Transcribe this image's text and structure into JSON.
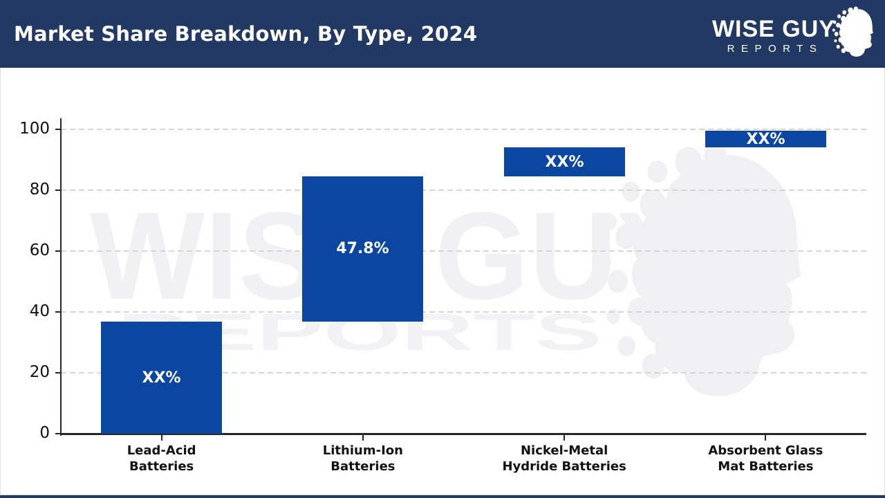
{
  "header": {
    "title": "Market Share Breakdown, By Type, 2024",
    "bg_color": "#223963",
    "logo": {
      "line1": "WISE GUY",
      "line2": "REPORTS"
    }
  },
  "watermark": {
    "line1": "WISE GUY",
    "line2": "REPORTS"
  },
  "chart_data": {
    "type": "bar",
    "subtype": "waterfall",
    "title": "Market Share Breakdown, By Type, 2024",
    "categories": [
      "Lead-Acid Batteries",
      "Lithium-Ion Batteries",
      "Nickel-Metal Hydride Batteries",
      "Absorbent Glass Mat Batteries"
    ],
    "category_label_lines": [
      [
        "Lead-Acid",
        "Batteries"
      ],
      [
        "Lithium-Ion",
        "Batteries"
      ],
      [
        "Nickel-Metal",
        "Hydride Batteries"
      ],
      [
        "Absorbent Glass",
        "Mat Batteries"
      ]
    ],
    "segments": [
      {
        "category": "Lead-Acid Batteries",
        "start": 0,
        "end": 36.8,
        "value": null,
        "value_label": "XX%"
      },
      {
        "category": "Lithium-Ion Batteries",
        "start": 36.8,
        "end": 84.6,
        "value": 47.8,
        "value_label": "47.8%"
      },
      {
        "category": "Nickel-Metal Hydride Batteries",
        "start": 84.6,
        "end": 94.0,
        "value": null,
        "value_label": "XX%"
      },
      {
        "category": "Absorbent Glass Mat Batteries",
        "start": 94.0,
        "end": 99.5,
        "value": null,
        "value_label": "XX%"
      }
    ],
    "yticks": [
      0,
      20,
      40,
      60,
      80,
      100
    ],
    "ylim": [
      0,
      105
    ],
    "xlabel": "",
    "ylabel": "",
    "grid": "horizontal-dashed",
    "legend": "none",
    "bar_color": "#0B47A0",
    "label_color": "#FFFFFF",
    "axis_color": "#262626",
    "grid_color": "#D6D6D6",
    "watermark_color": "#F1F1F3"
  }
}
